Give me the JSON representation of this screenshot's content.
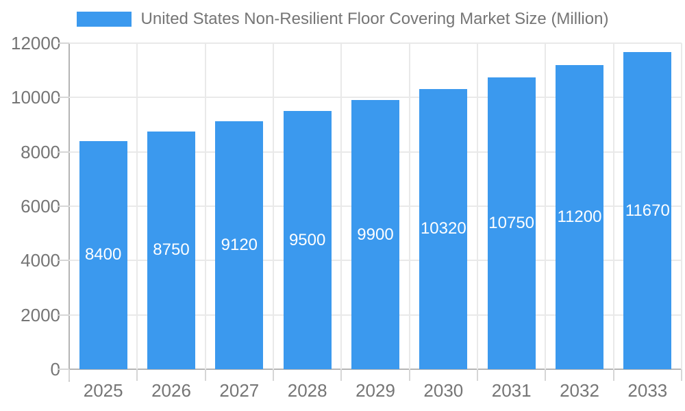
{
  "legend": {
    "label": "United States Non-Resilient Floor Covering Market Size (Million)",
    "swatch_color": "#3B99EE"
  },
  "chart_data": {
    "type": "bar",
    "categories": [
      "2025",
      "2026",
      "2027",
      "2028",
      "2029",
      "2030",
      "2031",
      "2032",
      "2033"
    ],
    "values": [
      8400,
      8750,
      9120,
      9500,
      9900,
      10320,
      10750,
      11200,
      11670
    ],
    "title": "United States Non-Resilient Floor Covering Market Size (Million)",
    "xlabel": "",
    "ylabel": "",
    "ylim": [
      0,
      12000
    ],
    "yticks": [
      0,
      2000,
      4000,
      6000,
      8000,
      10000,
      12000
    ],
    "bar_color": "#3B99EE",
    "value_label_color": "#FFFFFF",
    "legend_position": "top",
    "grid": true,
    "axis_text_color": "#757575",
    "grid_line_color": "#E9E9E9",
    "axis_line_color": "#B5B5B5",
    "tick_color": "#D6D6D6"
  }
}
